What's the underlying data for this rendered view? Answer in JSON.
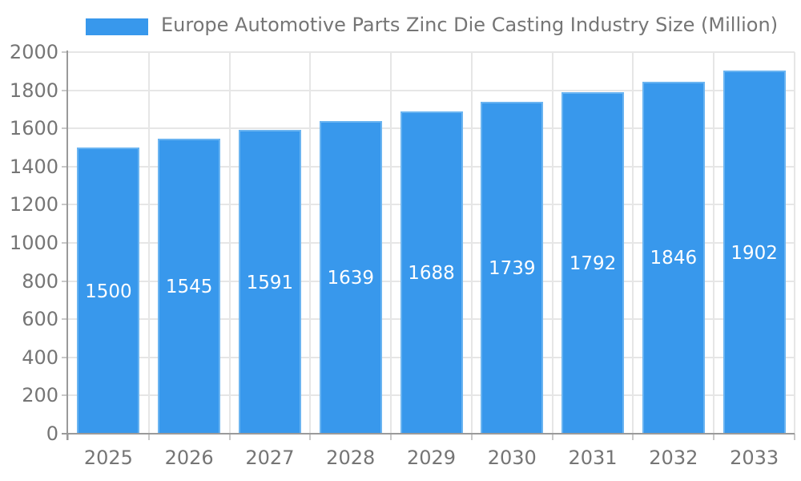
{
  "legend": {
    "label": "Europe Automotive Parts Zinc Die Casting Industry Size (Million)"
  },
  "chart_data": {
    "type": "bar",
    "title": "Europe Automotive Parts Zinc Die Casting Industry Size (Million)",
    "categories": [
      "2025",
      "2026",
      "2027",
      "2028",
      "2029",
      "2030",
      "2031",
      "2032",
      "2033"
    ],
    "values": [
      1500,
      1545,
      1591,
      1639,
      1688,
      1739,
      1792,
      1846,
      1902
    ],
    "xlabel": "",
    "ylabel": "",
    "ylim": [
      0,
      2000
    ],
    "ytick_step": 200,
    "yticks": [
      0,
      200,
      400,
      600,
      800,
      1000,
      1200,
      1400,
      1600,
      1800,
      2000
    ],
    "grid": true,
    "legend_position": "top",
    "colors": {
      "bar_fill": "#3898ec",
      "bar_border": "#6ab4f1",
      "gridline": "#e6e6e6",
      "axis_line": "#9a9a9a",
      "tick_mark": "#c9c9c9",
      "axis_text": "#757575",
      "bar_label_text": "#ffffff"
    }
  }
}
